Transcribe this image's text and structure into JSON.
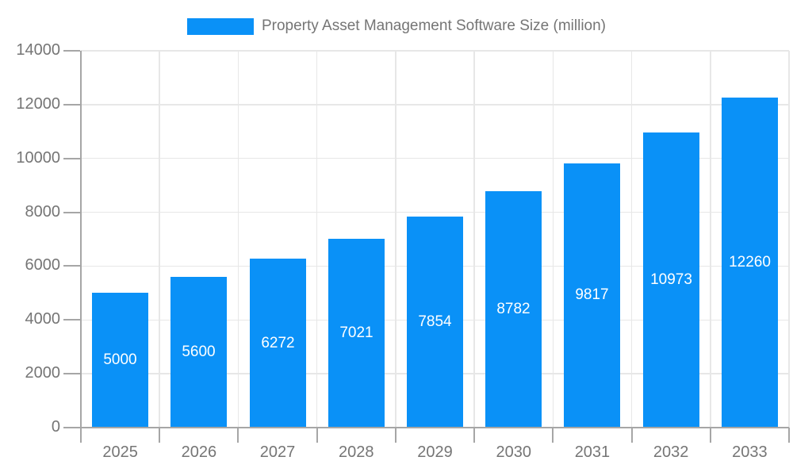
{
  "chart_data": {
    "type": "bar",
    "title": "Property Asset Management Software Size (million)",
    "categories": [
      "2025",
      "2026",
      "2027",
      "2028",
      "2029",
      "2030",
      "2031",
      "2032",
      "2033"
    ],
    "values": [
      5000,
      5600,
      6272,
      7021,
      7854,
      8782,
      9817,
      10973,
      12260
    ],
    "xlabel": "",
    "ylabel": "",
    "ylim": [
      0,
      14000
    ],
    "yticks": [
      0,
      2000,
      4000,
      6000,
      8000,
      10000,
      12000,
      14000
    ],
    "grid": true,
    "legend_position": "top",
    "bar_value_labels": "inside-center",
    "colors": {
      "bar": "#0a91f7",
      "bar_label": "#ffffff",
      "grid": "#e7e7e7",
      "axis": "#a6a6a6",
      "tick": "#a6a6a6",
      "tick_label": "#757575",
      "legend_text": "#757575",
      "background": "#ffffff"
    }
  }
}
